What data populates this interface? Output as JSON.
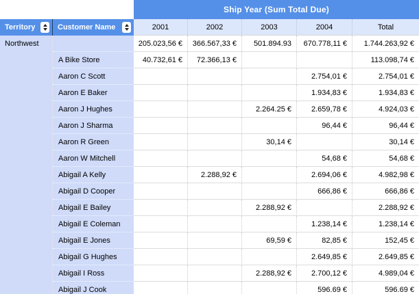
{
  "banner": {
    "title": "Ship Year (Sum Total Due)"
  },
  "columns": {
    "territory": "Territory",
    "customer": "Customer Name",
    "value_headers": [
      "2001",
      "2002",
      "2003",
      "2004",
      "Total"
    ]
  },
  "territory_group": {
    "label": "Northwest"
  },
  "icons": {
    "sort": "sort-arrows"
  },
  "colors": {
    "header_blue": "#5590e8",
    "year_header_bg": "#dde7fb",
    "row_header_bg": "#cfdbf9",
    "grid_line": "#dcdcdc",
    "text": "#000000",
    "header_text": "#ffffff"
  },
  "table": {
    "rows": [
      {
        "customer": "",
        "values": [
          "205.023,56 €",
          "366.567,33 €",
          "501.894.93",
          "670.778,11 €",
          "1.744.263,92 €"
        ]
      },
      {
        "customer": "A Bike Store",
        "values": [
          "40.732,61 €",
          "72.366,13 €",
          "",
          "",
          "113.098,74 €"
        ]
      },
      {
        "customer": "Aaron C Scott",
        "values": [
          "",
          "",
          "",
          "2.754,01 €",
          "2.754,01 €"
        ]
      },
      {
        "customer": "Aaron E Baker",
        "values": [
          "",
          "",
          "",
          "1.934,83 €",
          "1.934,83 €"
        ]
      },
      {
        "customer": "Aaron J Hughes",
        "values": [
          "",
          "",
          "2.264.25 €",
          "2.659,78 €",
          "4.924,03 €"
        ]
      },
      {
        "customer": "Aaron J Sharma",
        "values": [
          "",
          "",
          "",
          "96,44 €",
          "96,44 €"
        ]
      },
      {
        "customer": "Aaron R Green",
        "values": [
          "",
          "",
          "30,14 €",
          "",
          "30,14 €"
        ]
      },
      {
        "customer": "Aaron W Mitchell",
        "values": [
          "",
          "",
          "",
          "54,68 €",
          "54,68 €"
        ]
      },
      {
        "customer": "Abigail A Kelly",
        "values": [
          "",
          "2.288,92 €",
          "",
          "2.694,06 €",
          "4.982,98 €"
        ]
      },
      {
        "customer": "Abigail D Cooper",
        "values": [
          "",
          "",
          "",
          "666,86 €",
          "666,86 €"
        ]
      },
      {
        "customer": "Abigail E Bailey",
        "values": [
          "",
          "",
          "2.288,92 €",
          "",
          "2.288,92 €"
        ]
      },
      {
        "customer": "Abigail E Coleman",
        "values": [
          "",
          "",
          "",
          "1.238,14 €",
          "1.238,14 €"
        ]
      },
      {
        "customer": "Abigail E Jones",
        "values": [
          "",
          "",
          "69,59 €",
          "82,85 €",
          "152,45 €"
        ]
      },
      {
        "customer": "Abigail G Hughes",
        "values": [
          "",
          "",
          "",
          "2.649,85 €",
          "2.649,85 €"
        ]
      },
      {
        "customer": "Abigail I Ross",
        "values": [
          "",
          "",
          "2.288,92 €",
          "2.700,12 €",
          "4.989,04 €"
        ]
      },
      {
        "customer": "Abigail J Cook",
        "values": [
          "",
          "",
          "",
          "596.69 €",
          "596.69 €"
        ]
      }
    ]
  }
}
